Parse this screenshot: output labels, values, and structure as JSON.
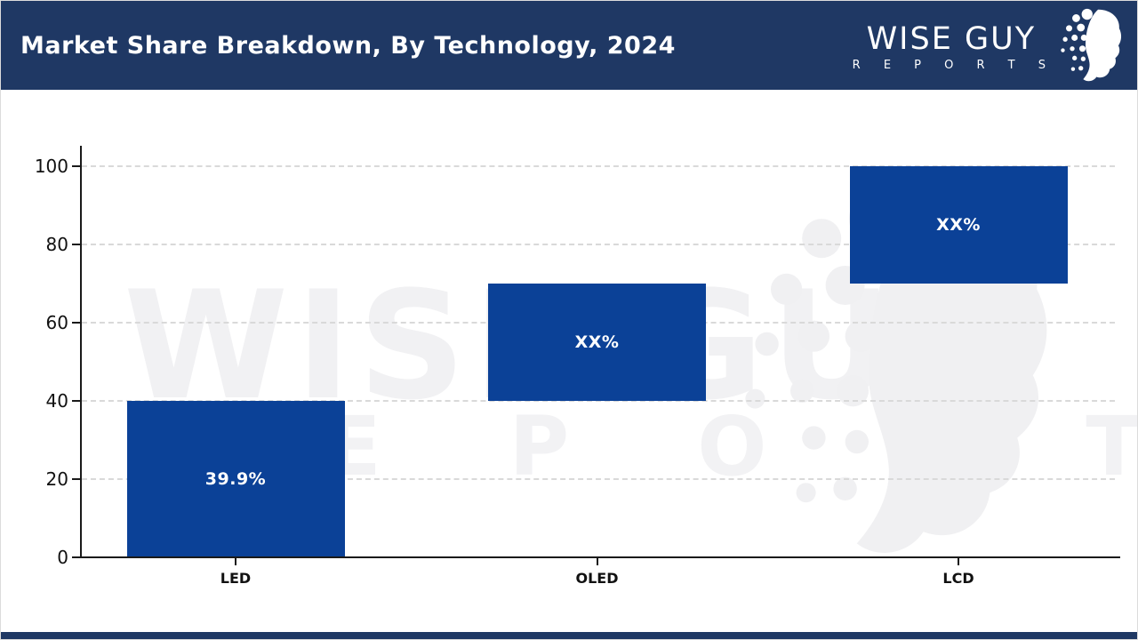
{
  "page": {
    "background": "#ffffff",
    "accent_navy": "#1f3864",
    "border_gray": "#dcdcdc"
  },
  "header": {
    "title": "Market Share Breakdown, By Technology, 2024",
    "logo_line1": "WISE GUY",
    "logo_line2": "R E P O R T S"
  },
  "watermark": {
    "line1": "WISE GUY",
    "line2": "R E P O R T S"
  },
  "chart_data": {
    "type": "bar",
    "subtype": "waterfall",
    "title": "Market Share Breakdown, By Technology, 2024",
    "categories": [
      "LED",
      "OLED",
      "LCD"
    ],
    "bars": [
      {
        "category": "LED",
        "start": 0,
        "end": 39.9,
        "label": "39.9%"
      },
      {
        "category": "OLED",
        "start": 40,
        "end": 70,
        "label": "XX%"
      },
      {
        "category": "LCD",
        "start": 70,
        "end": 100,
        "label": "XX%"
      }
    ],
    "yticks": [
      0,
      20,
      40,
      60,
      80,
      100
    ],
    "ylim": [
      0,
      104.5
    ],
    "xlabel": "",
    "ylabel": "",
    "grid": "dashed-horizontal",
    "legend": "none",
    "bar_color": "#0b4197",
    "bar_label_color": "#ffffff",
    "axis_color": "#1a1a1a"
  }
}
